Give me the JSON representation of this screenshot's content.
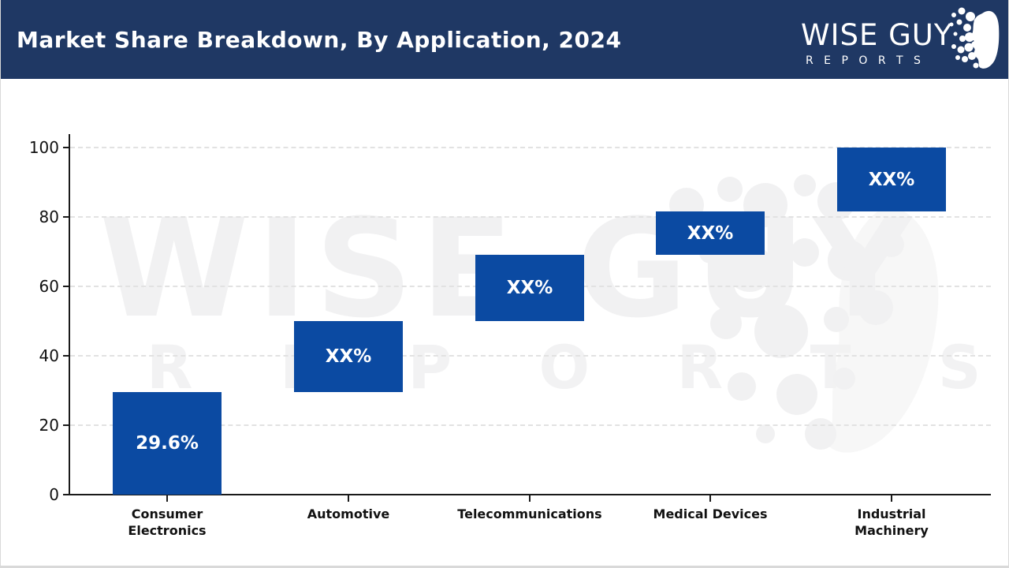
{
  "header": {
    "title": "Market Share Breakdown, By Application, 2024",
    "bg_color": "#1F3864",
    "logo": {
      "line1": "WISE GUY",
      "line2": "R E P O R T S"
    }
  },
  "watermark": {
    "line1": "WISE GUY",
    "line2": "R E P O R T S"
  },
  "chart_data": {
    "type": "bar",
    "subtype": "waterfall",
    "title": "Market Share Breakdown, By Application, 2024",
    "xlabel": "",
    "ylabel": "",
    "ylim": [
      0,
      105
    ],
    "yticks": [
      0,
      20,
      40,
      60,
      80,
      100
    ],
    "grid": true,
    "bar_color": "#0B4AA2",
    "categories": [
      "Consumer Electronics",
      "Automotive",
      "Telecommunications",
      "Medical Devices",
      "Industrial Machinery"
    ],
    "segments": [
      {
        "category": "Consumer Electronics",
        "label_lines": [
          "Consumer",
          "Electronics"
        ],
        "start": 0,
        "end": 29.6,
        "value": 29.6,
        "display_label": "29.6%"
      },
      {
        "category": "Automotive",
        "label_lines": [
          "Automotive"
        ],
        "start": 29.6,
        "end": 50.0,
        "value": 20.4,
        "display_label": "XX%"
      },
      {
        "category": "Telecommunications",
        "label_lines": [
          "Telecommunications"
        ],
        "start": 50.0,
        "end": 69.0,
        "value": 19.0,
        "display_label": "XX%"
      },
      {
        "category": "Medical Devices",
        "label_lines": [
          "Medical Devices"
        ],
        "start": 69.0,
        "end": 81.5,
        "value": 12.5,
        "display_label": "XX%"
      },
      {
        "category": "Industrial Machinery",
        "label_lines": [
          "Industrial",
          "Machinery"
        ],
        "start": 81.5,
        "end": 100.0,
        "value": 18.5,
        "display_label": "XX%"
      }
    ]
  }
}
